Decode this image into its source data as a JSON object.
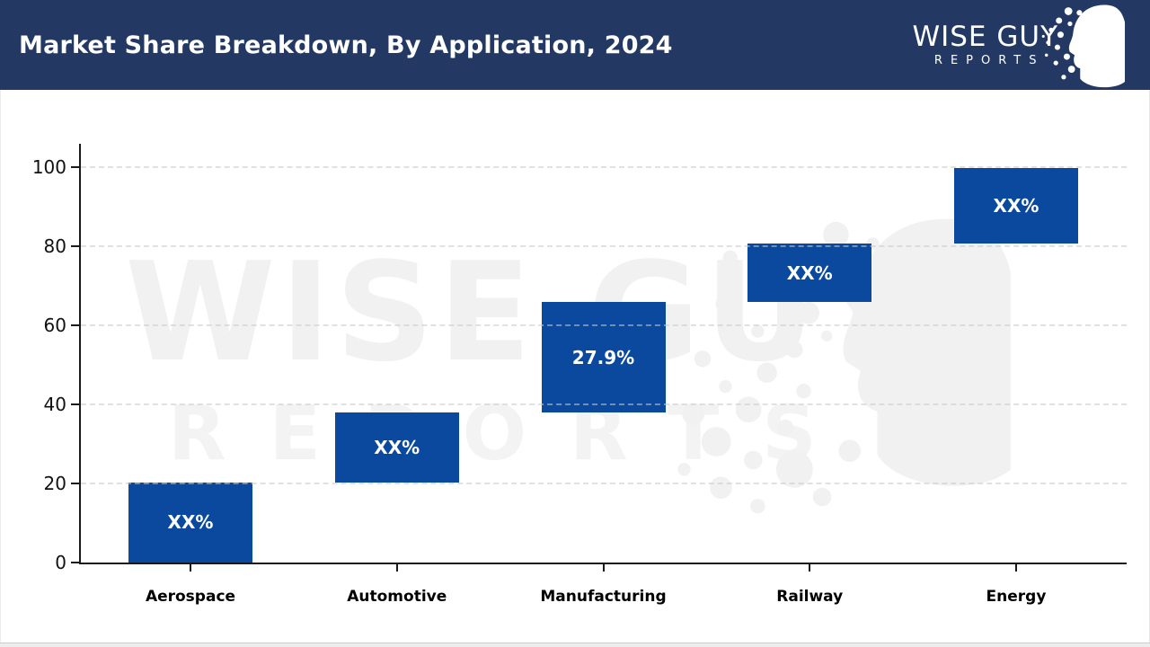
{
  "header": {
    "title": "Market Share Breakdown, By Application, 2024",
    "logo": {
      "line1": "WISE GUY",
      "line2": "REPORTS"
    }
  },
  "watermark": {
    "line1": "WISE GUY",
    "line2": "REPORTS"
  },
  "colors": {
    "header_bg": "#233963",
    "bar": "#0a499e",
    "grid": "#dcdcdc",
    "axis_text": "#111111",
    "bar_label": "#ffffff",
    "watermark": "#f1f1f1"
  },
  "chart_data": {
    "type": "bar",
    "variant": "floating-segment-waterfall",
    "title": "Market Share Breakdown, By Application, 2024",
    "categories": [
      "Aerospace",
      "Automotive",
      "Manufacturing",
      "Railway",
      "Energy"
    ],
    "segments": [
      {
        "category": "Aerospace",
        "label": "XX%",
        "start": 0,
        "end": 20.3,
        "value": 20.3
      },
      {
        "category": "Automotive",
        "label": "XX%",
        "start": 20.3,
        "end": 38.0,
        "value": 17.7
      },
      {
        "category": "Manufacturing",
        "label": "27.9%",
        "start": 38.0,
        "end": 65.9,
        "value": 27.9
      },
      {
        "category": "Railway",
        "label": "XX%",
        "start": 65.9,
        "end": 80.8,
        "value": 14.9
      },
      {
        "category": "Energy",
        "label": "XX%",
        "start": 80.8,
        "end": 100.0,
        "value": 19.2
      }
    ],
    "yticks": [
      0,
      20,
      40,
      60,
      80,
      100
    ],
    "ylim": [
      0,
      106
    ],
    "xlabel": "",
    "ylabel": "",
    "grid": "dashed-horizontal",
    "legend": "none",
    "bar_color": "#0a499e"
  }
}
